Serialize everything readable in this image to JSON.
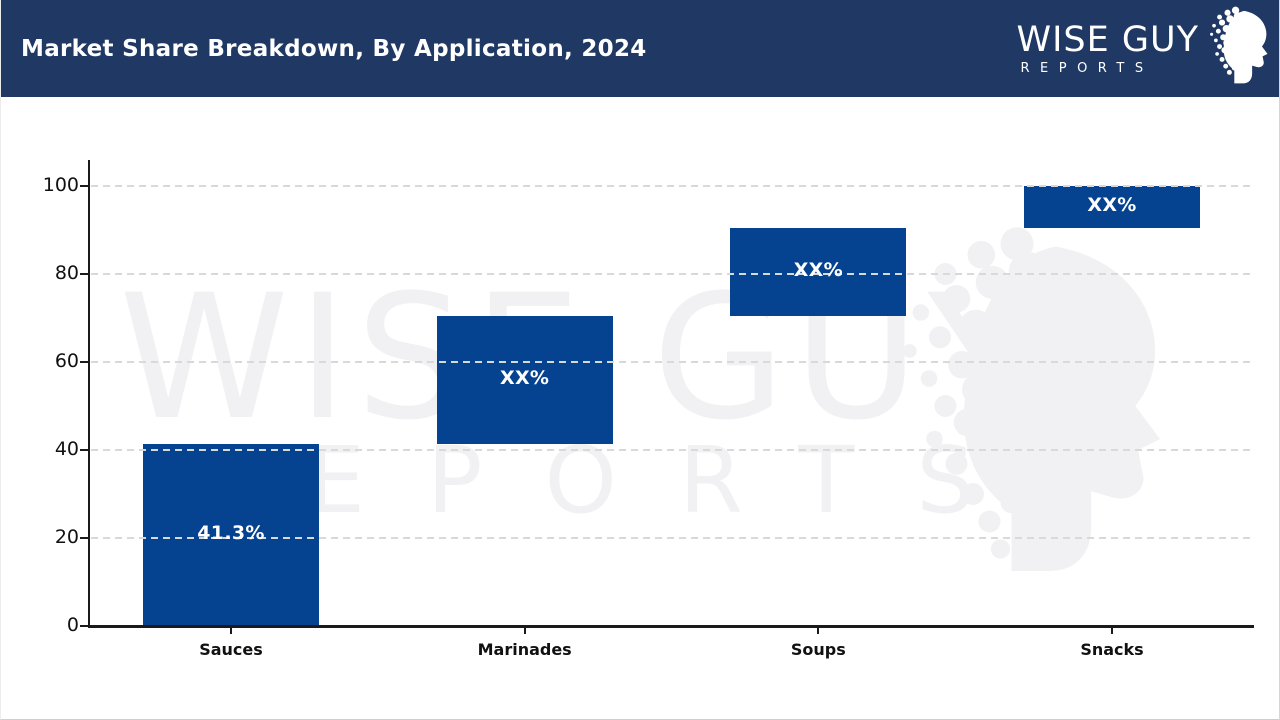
{
  "header": {
    "title": "Market Share Breakdown, By Application, 2024",
    "logo": {
      "line1": "WISE GUY",
      "line2": "REPORTS"
    }
  },
  "watermark": {
    "line1": "WISE GUY",
    "line2": "REPORTS"
  },
  "colors": {
    "header_bg": "#203864",
    "bar": "#05428f",
    "grid": "#d9d9d9",
    "axis": "#1a1a1a",
    "watermark": "#f1f1f3",
    "label_on_bar": "#ffffff"
  },
  "chart_data": {
    "type": "bar",
    "subtype": "waterfall",
    "title": "Market Share Breakdown, By Application, 2024",
    "categories": [
      "Sauces",
      "Marinades",
      "Soups",
      "Snacks"
    ],
    "bars": [
      {
        "category": "Sauces",
        "start": 0,
        "end": 41.3,
        "label": "41.3%"
      },
      {
        "category": "Marinades",
        "start": 41.3,
        "end": 70.5,
        "label": "XX%"
      },
      {
        "category": "Soups",
        "start": 70.5,
        "end": 90.5,
        "label": "XX%"
      },
      {
        "category": "Snacks",
        "start": 90.5,
        "end": 100,
        "label": "XX%"
      }
    ],
    "xlabel": "",
    "ylabel": "",
    "y_ticks": [
      0,
      20,
      40,
      60,
      80,
      100
    ],
    "ylim": [
      0,
      106
    ],
    "grid": "horizontal-dashed",
    "legend": "none",
    "bar_color": "#05428f"
  }
}
